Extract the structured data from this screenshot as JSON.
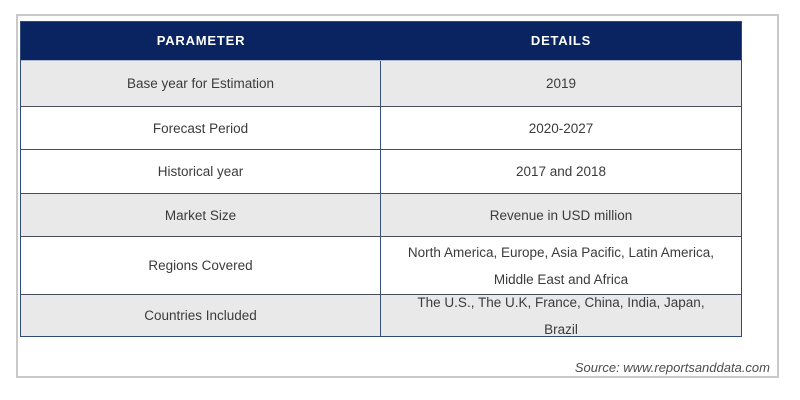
{
  "table": {
    "columns": [
      "PARAMETER",
      "DETAILS"
    ],
    "rows": [
      {
        "parameter": "Base year for Estimation",
        "details": "2019"
      },
      {
        "parameter": "Forecast Period",
        "details": "2020-2027"
      },
      {
        "parameter": "Historical year",
        "details": "2017 and 2018"
      },
      {
        "parameter": "Market Size",
        "details": "Revenue in USD million"
      },
      {
        "parameter": "Regions Covered",
        "details": "North America, Europe, Asia Pacific, Latin America, Middle East and Africa"
      },
      {
        "parameter": "Countries Included",
        "details": "The U.S., The  U.K, France, China, India, Japan, Brazil"
      }
    ]
  },
  "chart_data": {
    "type": "table",
    "columns": [
      "PARAMETER",
      "DETAILS"
    ],
    "rows": [
      [
        "Base year for Estimation",
        "2019"
      ],
      [
        "Forecast Period",
        "2020-2027"
      ],
      [
        "Historical year",
        "2017 and 2018"
      ],
      [
        "Market Size",
        "Revenue in USD million"
      ],
      [
        "Regions Covered",
        "North America, Europe, Asia Pacific, Latin America, Middle East and Africa"
      ],
      [
        "Countries Included",
        "The U.S., The  U.K, France, China, India, Japan, Brazil"
      ]
    ]
  },
  "source": {
    "label": "Source: www.reportsanddata.com"
  },
  "colors": {
    "header_bg": "#0a2361",
    "header_text": "#ffffff",
    "shaded_row_bg": "#e9e9e9",
    "row_bg": "#ffffff",
    "table_border": "#2e4a78",
    "column_divider": "#38537f",
    "row_divider": "#474d5c",
    "page_border": "#c9c9c9",
    "body_text": "#3b3b3b",
    "source_text": "#4d4d4d"
  }
}
